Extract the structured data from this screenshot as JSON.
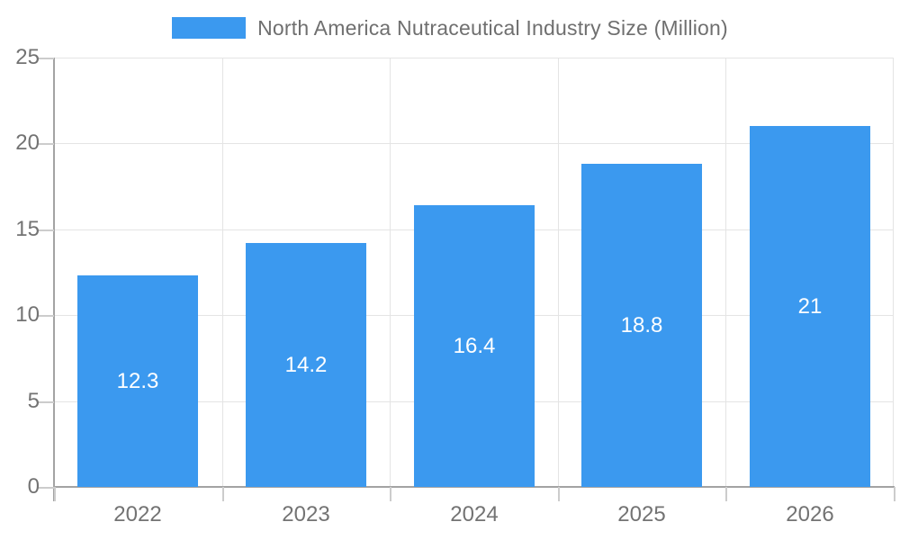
{
  "chart_data": {
    "type": "bar",
    "title": "North America Nutraceutical Industry Size (Million)",
    "legend_entries": [
      "North America Nutraceutical Industry Size (Million)"
    ],
    "legend_position": "top",
    "categories": [
      "2022",
      "2023",
      "2024",
      "2025",
      "2026"
    ],
    "values": [
      12.3,
      14.2,
      16.4,
      18.8,
      21
    ],
    "value_labels": [
      "12.3",
      "14.2",
      "16.4",
      "18.8",
      "21"
    ],
    "xlabel": "",
    "ylabel": "",
    "ylim": [
      0,
      25
    ],
    "yticks": [
      0,
      5,
      10,
      15,
      20,
      25
    ],
    "grid": true,
    "colors": {
      "bar": "#3b99ef",
      "bar_label_text": "#ffffff",
      "axis_text": "#737373",
      "legend_text": "#6f6f6f",
      "grid_line": "#e4e4e4",
      "axis_line": "#a3a3a3",
      "tick_line": "#cccccc",
      "background": "#ffffff"
    }
  }
}
